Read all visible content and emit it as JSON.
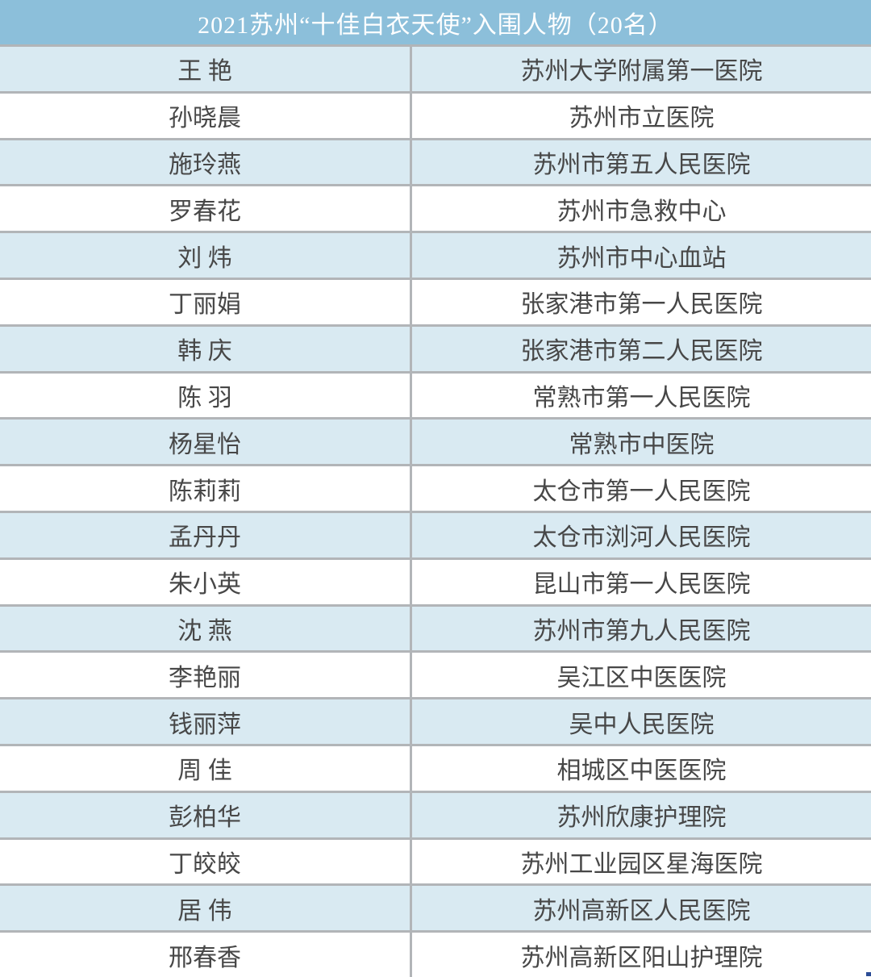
{
  "table": {
    "title": "2021苏州“十佳白衣天使”入围人物（20名）",
    "columns": [
      "name",
      "hospital"
    ],
    "rows": [
      {
        "name": "王 艳",
        "hospital": "苏州大学附属第一医院"
      },
      {
        "name": "孙晓晨",
        "hospital": "苏州市立医院"
      },
      {
        "name": "施玲燕",
        "hospital": "苏州市第五人民医院"
      },
      {
        "name": "罗春花",
        "hospital": "苏州市急救中心"
      },
      {
        "name": "刘 炜",
        "hospital": "苏州市中心血站"
      },
      {
        "name": "丁丽娟",
        "hospital": "张家港市第一人民医院"
      },
      {
        "name": "韩 庆",
        "hospital": "张家港市第二人民医院"
      },
      {
        "name": "陈 羽",
        "hospital": "常熟市第一人民医院"
      },
      {
        "name": "杨星怡",
        "hospital": "常熟市中医院"
      },
      {
        "name": "陈莉莉",
        "hospital": "太仓市第一人民医院"
      },
      {
        "name": "孟丹丹",
        "hospital": "太仓市浏河人民医院"
      },
      {
        "name": "朱小英",
        "hospital": "昆山市第一人民医院"
      },
      {
        "name": "沈 燕",
        "hospital": "苏州市第九人民医院"
      },
      {
        "name": "李艳丽",
        "hospital": "吴江区中医医院"
      },
      {
        "name": "钱丽萍",
        "hospital": "吴中人民医院"
      },
      {
        "name": "周 佳",
        "hospital": "相城区中医医院"
      },
      {
        "name": "彭柏华",
        "hospital": "苏州欣康护理院"
      },
      {
        "name": "丁皎皎",
        "hospital": "苏州工业园区星海医院"
      },
      {
        "name": "居 伟",
        "hospital": "苏州高新区人民医院"
      },
      {
        "name": "邢春香",
        "hospital": "苏州高新区阳山护理院"
      }
    ]
  },
  "colors": {
    "header_bg": "#8cbfda",
    "row_alt_bg": "#d9eaf2",
    "row_bg": "#ffffff",
    "border": "#b2b5b8",
    "title_text": "#ffffff",
    "cell_text": "#474747",
    "corner_artifact": "#2c4d96"
  }
}
